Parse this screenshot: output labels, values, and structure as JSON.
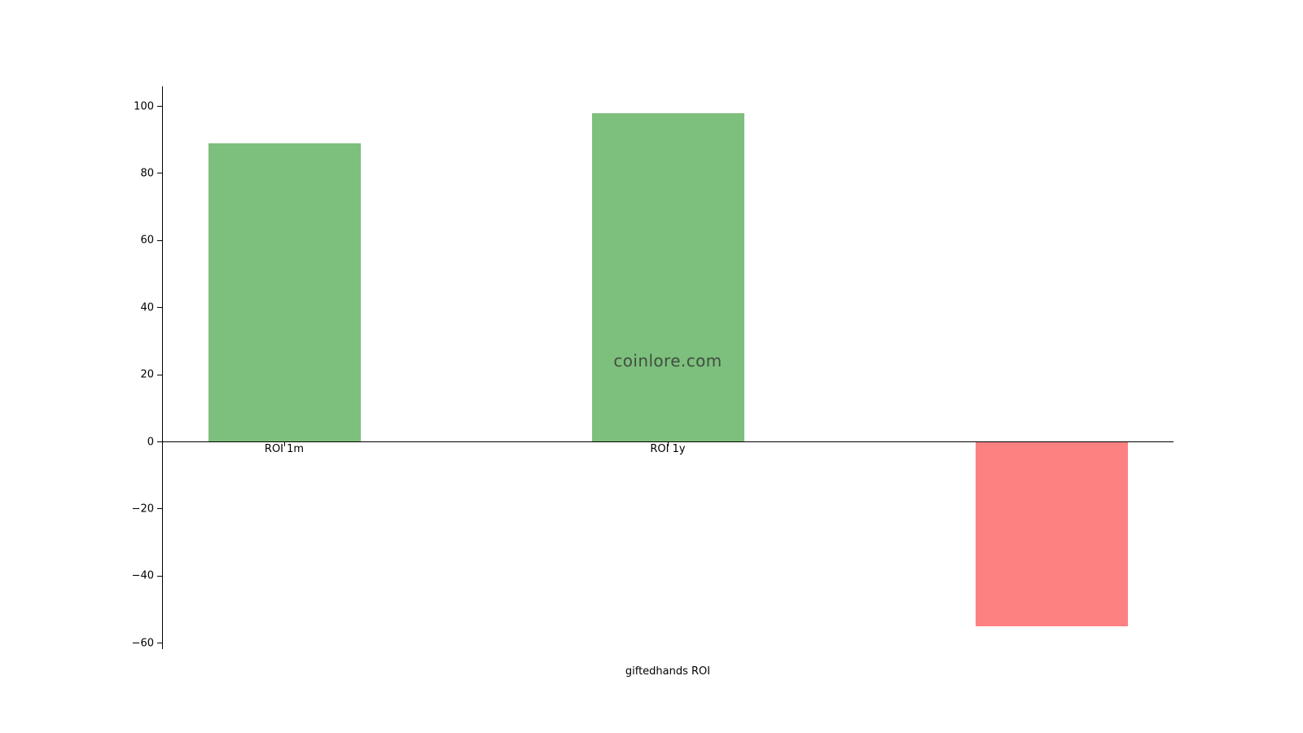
{
  "chart_data": {
    "type": "bar",
    "title": "",
    "xlabel": "giftedhands ROI",
    "ylabel": "",
    "categories": [
      "ROI 1m",
      "ROI 1y",
      ""
    ],
    "values": [
      89,
      98,
      -55
    ],
    "yticks": [
      100,
      80,
      60,
      40,
      20,
      0,
      -20,
      -40,
      -60
    ],
    "ylim": [
      -62,
      106
    ],
    "grid": false,
    "legend": "none",
    "positive_color": "#7dc07d",
    "negative_color": "#fd8181",
    "axis_color": "#000000",
    "bars": [
      {
        "label": "ROI 1m",
        "value": 89,
        "color": "#7dc07d"
      },
      {
        "label": "ROI 1y",
        "value": 98,
        "color": "#7dc07d"
      },
      {
        "label": "",
        "value": -55,
        "color": "#fd8181"
      }
    ]
  },
  "watermark": {
    "text": "coinlore.com",
    "color": "#2f2f2f"
  }
}
